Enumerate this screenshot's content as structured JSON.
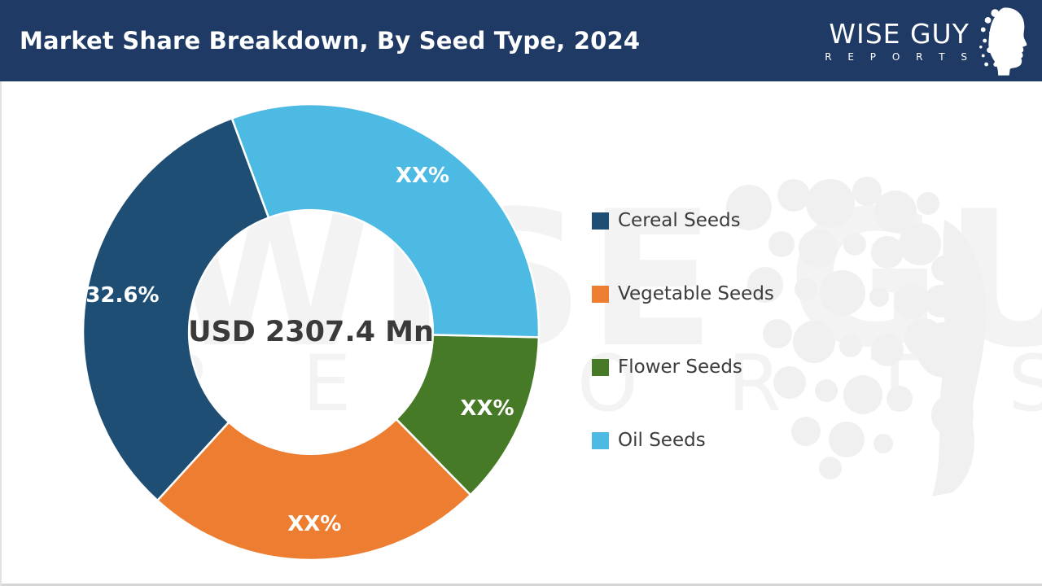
{
  "header": {
    "title": "Market Share Breakdown, By Seed Type, 2024",
    "logo": {
      "primary": "WISE GUY",
      "secondary": "R E P O R T S"
    },
    "background_color": "#203A66"
  },
  "watermark": {
    "line1": "WISE GUY",
    "line2": "R E P O R T S",
    "color": "#F3F3F3"
  },
  "chart_data": {
    "type": "donut",
    "title": "Market Share Breakdown, By Seed Type, 2024",
    "center_label": "USD 2307.4 Mn",
    "start_angle_deg": 110.3,
    "direction": "counterclockwise",
    "inner_radius_ratio": 0.535,
    "legend_position": "right",
    "segments": [
      {
        "name": "Cereal Seeds",
        "value_pct": 32.6,
        "display_label": "32.6%",
        "color": "#1E4E74"
      },
      {
        "name": "Vegetable Seeds",
        "value_pct": 24.1,
        "display_label": "XX%",
        "color": "#ED7D30"
      },
      {
        "name": "Flower Seeds",
        "value_pct": 12.3,
        "display_label": "XX%",
        "color": "#477A27"
      },
      {
        "name": "Oil Seeds",
        "value_pct": 31.0,
        "display_label": "XX%",
        "color": "#4DBAE3"
      }
    ]
  }
}
